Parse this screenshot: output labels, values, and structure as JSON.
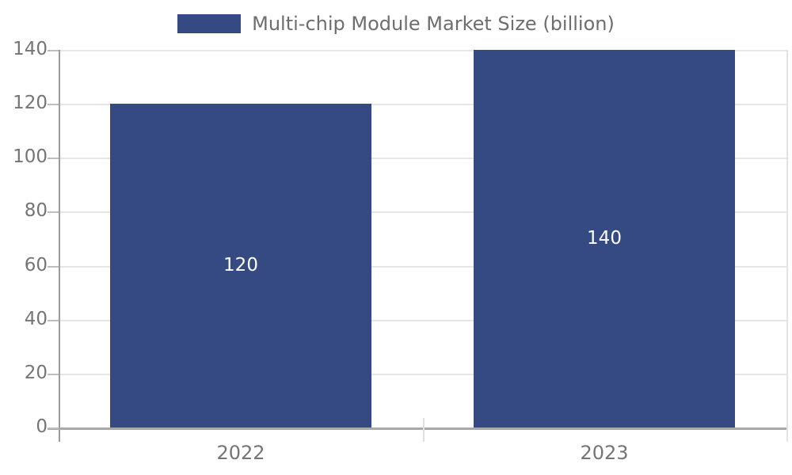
{
  "legend": {
    "label": "Multi-chip Module Market Size (billion)",
    "swatch_color": "#354a83"
  },
  "chart_data": {
    "type": "bar",
    "title": "Multi-chip Module Market Size (billion)",
    "categories": [
      "2022",
      "2023"
    ],
    "values": [
      120,
      140
    ],
    "value_labels": [
      "120",
      "140"
    ],
    "xlabel": "",
    "ylabel": "",
    "ylim": [
      0,
      140
    ],
    "ytick_step": 20,
    "ytick_labels": [
      "0",
      "20",
      "40",
      "60",
      "80",
      "100",
      "120",
      "140"
    ],
    "grid": true,
    "legend_position": "top",
    "bar_color": "#354a83",
    "value_label_color": "#ffffff"
  }
}
